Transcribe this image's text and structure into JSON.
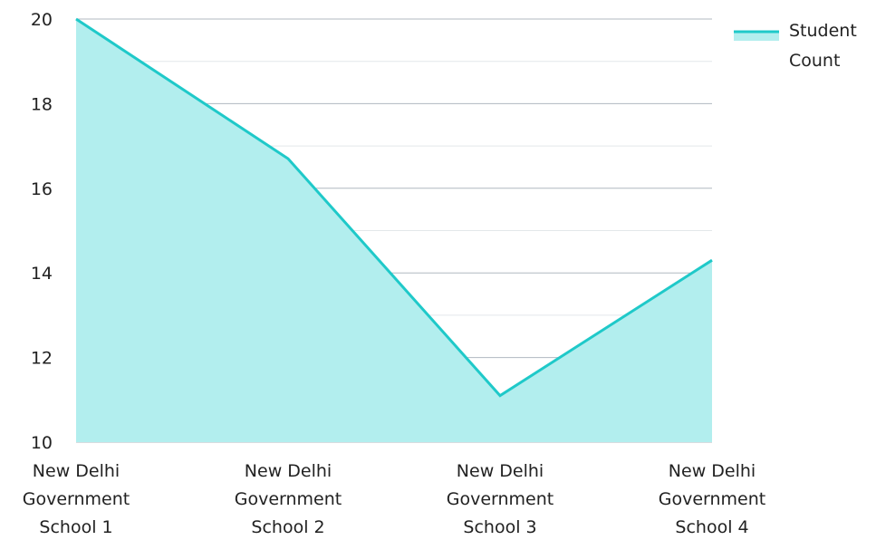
{
  "chart_data": {
    "type": "area",
    "title": "",
    "xlabel": "",
    "ylabel": "",
    "categories": [
      [
        "New Delhi",
        "Government",
        "School 1"
      ],
      [
        "New Delhi",
        "Government",
        "School 2"
      ],
      [
        "New Delhi",
        "Government",
        "School 3"
      ],
      [
        "New Delhi",
        "Government",
        "School 4"
      ]
    ],
    "series": [
      {
        "name": "Student Count",
        "values": [
          20,
          16.7,
          11.1,
          14.3
        ]
      }
    ],
    "ylim": [
      10,
      20
    ],
    "yticks": [
      "10",
      "12",
      "14",
      "16",
      "18",
      "20"
    ],
    "legend": {
      "position": "top-right",
      "label_lines": [
        "Student",
        "Count"
      ]
    },
    "grid": true,
    "colors": {
      "line": "#1fc9c9",
      "fill": "#b2eeee",
      "major_grid": "#b0b8c0",
      "minor_grid": "#e3e7ea",
      "text": "#222222"
    }
  }
}
